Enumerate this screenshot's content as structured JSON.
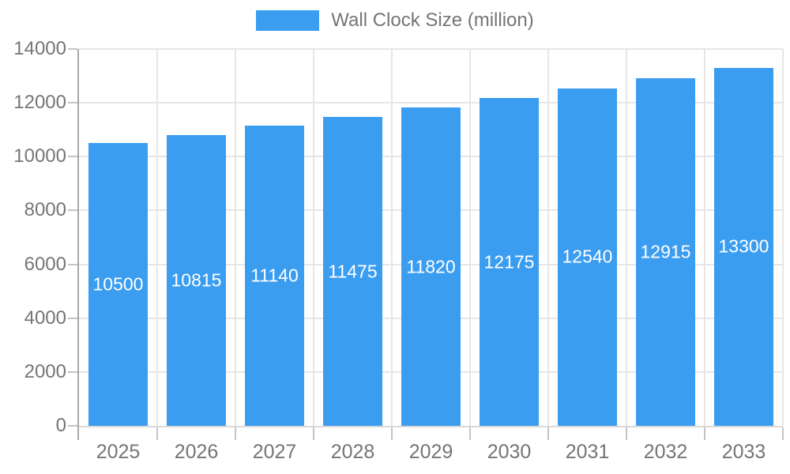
{
  "legend": {
    "label": "Wall Clock Size (million)"
  },
  "colors": {
    "bar": "#3B9DF0",
    "bar_label": "#ffffff",
    "axis_text": "#757575",
    "grid": "#e6e6e6",
    "axis_line": "#a8a8a8",
    "baseline": "#d9d9d9",
    "tick": "#c4c4c4"
  },
  "chart_data": {
    "type": "bar",
    "title": "",
    "categories": [
      "2025",
      "2026",
      "2027",
      "2028",
      "2029",
      "2030",
      "2031",
      "2032",
      "2033"
    ],
    "series": [
      {
        "name": "Wall Clock Size (million)",
        "values": [
          10500,
          10815,
          11140,
          11475,
          11820,
          12175,
          12540,
          12915,
          13300
        ]
      }
    ],
    "xlabel": "",
    "ylabel": "",
    "ylim": [
      0,
      14000
    ],
    "yticks": [
      0,
      2000,
      4000,
      6000,
      8000,
      10000,
      12000,
      14000
    ],
    "grid": true,
    "legend_position": "top",
    "bar_value_labels": "inside-center-white"
  }
}
